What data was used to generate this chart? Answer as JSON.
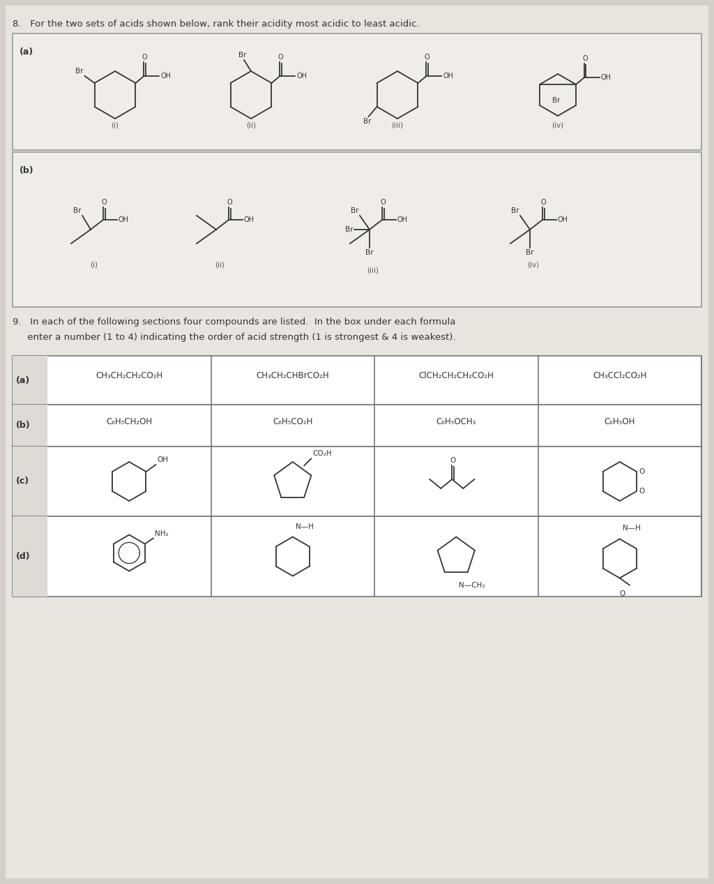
{
  "bg_page": "#e8e4de",
  "bg_outer": "#d4cfc8",
  "white": "#ffffff",
  "dark": "#333333",
  "gray_line": "#888888",
  "title_8": "8.   For the two sets of acids shown below, rank their acidity most acidic to least acidic.",
  "title_9_line1": "9.   In each of the following sections four compounds are listed.  In the box under each formula",
  "title_9_line2": "     enter a number (1 to 4) indicating the order of acid strength (1 is strongest & 4 is weakest).",
  "row_a_labels": [
    "CH₃CH₂CH₂CO₂H",
    "CH₃CH₂CHBrCO₂H",
    "ClCH₂CH₂CH₂CO₂H",
    "CH₃CCl₂CO₂H"
  ],
  "row_b_labels": [
    "C₆H₅CH₂OH",
    "C₆H₅CO₂H",
    "C₆H₅OCH₃",
    "C₆H₅OH"
  ]
}
